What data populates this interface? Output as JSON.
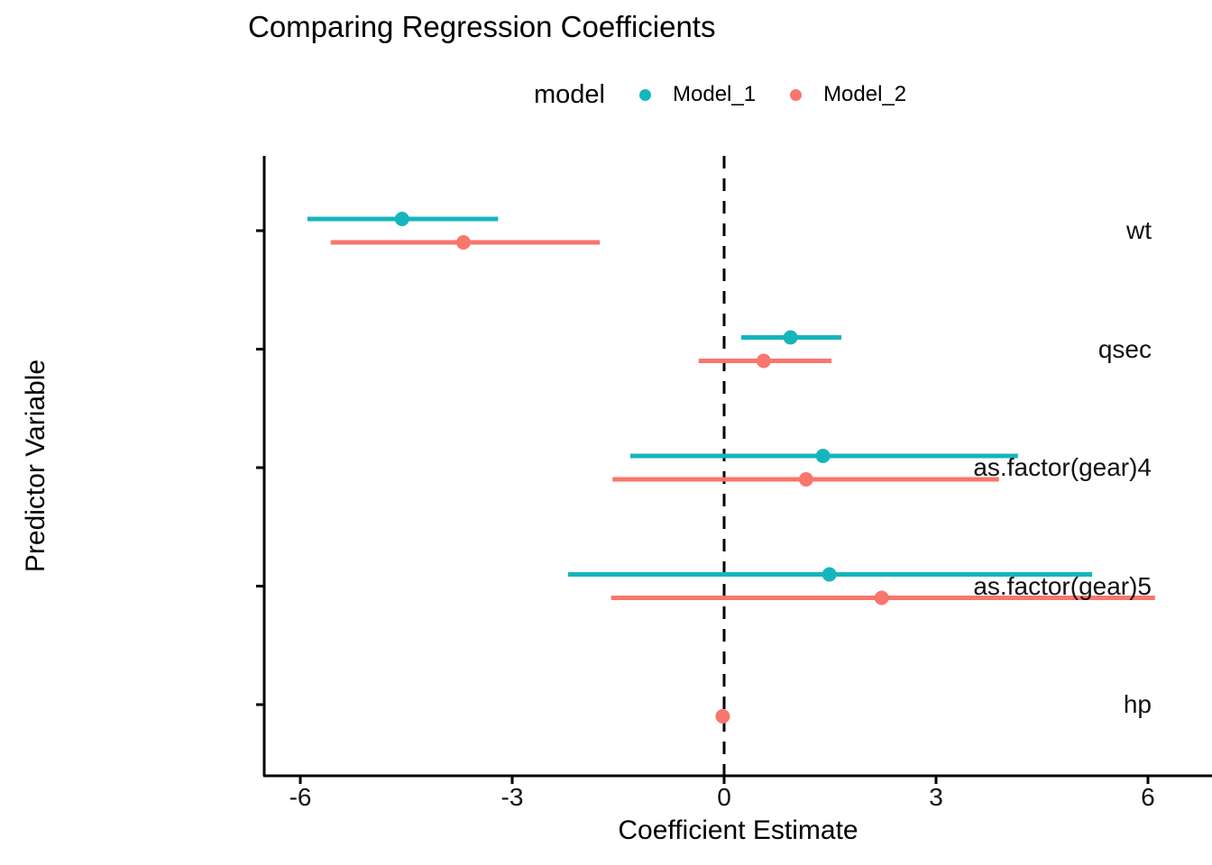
{
  "chart_data": {
    "type": "dot-whisker",
    "title": "Comparing Regression Coefficients",
    "legend_title": "model",
    "legend_position": "top",
    "xlabel": "Coefficient Estimate",
    "ylabel": "Predictor Variable",
    "xlim": [
      -6.5,
      6.9
    ],
    "x_ticks": [
      -6,
      -3,
      0,
      3,
      6
    ],
    "x_tick_labels": [
      "-6",
      "-3",
      "0",
      "3",
      "6"
    ],
    "zero_reference_line": 0,
    "zero_line_style": "dashed",
    "grid": "off",
    "categories": [
      "wt",
      "qsec",
      "as.factor(gear)4",
      "as.factor(gear)5",
      "hp"
    ],
    "series": [
      {
        "name": "Model_1",
        "color": "#16B5BC",
        "points": [
          {
            "category": "wt",
            "estimate": -4.56,
            "conf_low": -5.9,
            "conf_high": -3.2
          },
          {
            "category": "qsec",
            "estimate": 0.94,
            "conf_low": 0.24,
            "conf_high": 1.66
          },
          {
            "category": "as.factor(gear)4",
            "estimate": 1.4,
            "conf_low": -1.33,
            "conf_high": 4.16
          },
          {
            "category": "as.factor(gear)5",
            "estimate": 1.49,
            "conf_low": -2.21,
            "conf_high": 5.21
          }
        ]
      },
      {
        "name": "Model_2",
        "color": "#F8766D",
        "points": [
          {
            "category": "wt",
            "estimate": -3.69,
            "conf_low": -5.57,
            "conf_high": -1.76
          },
          {
            "category": "qsec",
            "estimate": 0.56,
            "conf_low": -0.36,
            "conf_high": 1.52
          },
          {
            "category": "as.factor(gear)4",
            "estimate": 1.16,
            "conf_low": -1.58,
            "conf_high": 3.89
          },
          {
            "category": "as.factor(gear)5",
            "estimate": 2.23,
            "conf_low": -1.6,
            "conf_high": 6.1
          },
          {
            "category": "hp",
            "estimate": -0.02,
            "conf_low": -0.06,
            "conf_high": 0.02
          }
        ]
      }
    ]
  }
}
